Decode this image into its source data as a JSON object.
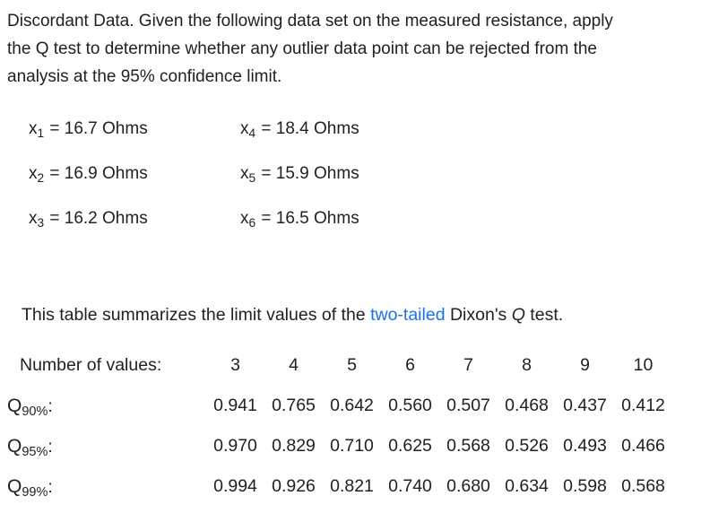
{
  "problem": {
    "line1": "Discordant Data. Given the following data set on the measured resistance, apply",
    "line2": "the Q test to determine whether any outlier data point can be rejected from the",
    "line3": "analysis at the 95% confidence limit."
  },
  "measurements": {
    "left": [
      {
        "var": "x",
        "sub": "1",
        "rest": " = 16.7 Ohms"
      },
      {
        "var": "x",
        "sub": "2",
        "rest": " = 16.9 Ohms"
      },
      {
        "var": "x",
        "sub": "3",
        "rest": " = 16.2 Ohms"
      }
    ],
    "right": [
      {
        "var": "x",
        "sub": "4",
        "rest": " = 18.4 Ohms"
      },
      {
        "var": "x",
        "sub": "5",
        "rest": " = 15.9 Ohms"
      },
      {
        "var": "x",
        "sub": "6",
        "rest": " = 16.5 Ohms"
      }
    ]
  },
  "caption": {
    "part1": "This table summarizes the limit values of the ",
    "link_text": "two-tailed",
    "part2": " Dixon's ",
    "q_italic": "Q",
    "part3": " test."
  },
  "qtable": {
    "header_label": "Number of values:",
    "counts": [
      "3",
      "4",
      "5",
      "6",
      "7",
      "8",
      "9",
      "10"
    ],
    "rows": [
      {
        "base": "Q",
        "sub": "90%",
        "colon": ":",
        "values": [
          "0.941",
          "0.765",
          "0.642",
          "0.560",
          "0.507",
          "0.468",
          "0.437",
          "0.412"
        ]
      },
      {
        "base": "Q",
        "sub": "95%",
        "colon": ":",
        "values": [
          "0.970",
          "0.829",
          "0.710",
          "0.625",
          "0.568",
          "0.526",
          "0.493",
          "0.466"
        ]
      },
      {
        "base": "Q",
        "sub": "99%",
        "colon": ":",
        "values": [
          "0.994",
          "0.926",
          "0.821",
          "0.740",
          "0.680",
          "0.634",
          "0.598",
          "0.568"
        ]
      }
    ]
  },
  "colors": {
    "text": "#202124",
    "link": "#1a73e8"
  }
}
